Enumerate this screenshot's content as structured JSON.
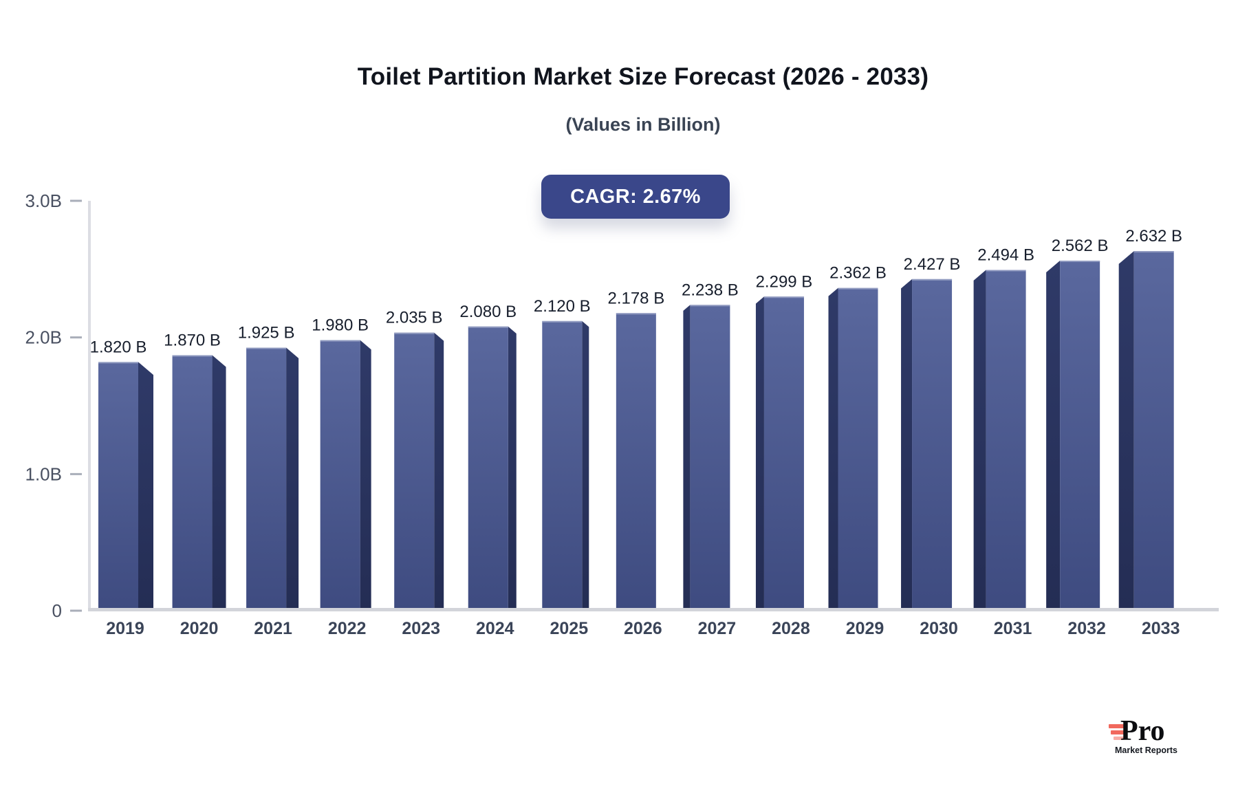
{
  "header": {
    "title": "Toilet Partition Market Size Forecast (2026 - 2033)",
    "subtitle": "(Values in Billion)",
    "cagr_badge": "CAGR: 2.67%"
  },
  "chart_data": {
    "type": "bar",
    "title": "Toilet Partition Market Size Forecast (2026 - 2033)",
    "subtitle": "(Values in Billion)",
    "cagr_text": "CAGR: 2.67%",
    "unit": "Billion",
    "categories": [
      "2019",
      "2020",
      "2021",
      "2022",
      "2023",
      "2024",
      "2025",
      "2026",
      "2027",
      "2028",
      "2029",
      "2030",
      "2031",
      "2032",
      "2033"
    ],
    "values": [
      1.82,
      1.87,
      1.925,
      1.98,
      2.035,
      2.08,
      2.12,
      2.178,
      2.238,
      2.299,
      2.362,
      2.427,
      2.494,
      2.562,
      2.632
    ],
    "value_labels": [
      "1.820 B",
      "1.870 B",
      "1.925 B",
      "1.980 B",
      "2.035 B",
      "2.080 B",
      "2.120 B",
      "2.178 B",
      "2.238 B",
      "2.299 B",
      "2.362 B",
      "2.427 B",
      "2.494 B",
      "2.562 B",
      "2.632 B"
    ],
    "xlabel": "",
    "ylabel": "",
    "ylim": [
      0,
      3.0
    ],
    "ytick_labels": [
      "0",
      "1.0B",
      "2.0B",
      "3.0B"
    ],
    "ytick_values": [
      0,
      1,
      2,
      3
    ],
    "grid": false,
    "legend": "none",
    "bar_style": "3d-perspective-center-vanishing",
    "colors": {
      "bar_front_top": "#5a689e",
      "bar_front_bottom": "#3e4b80",
      "bar_side_top": "#2f3a68",
      "bar_side_bottom": "#242d54",
      "bar_top_highlight": "#9aa3c6",
      "axis_line": "#dcdde3",
      "baseline": "#d2d4da",
      "tick_dash": "#a9aeb9",
      "ytick_text": "#495061",
      "xtick_text": "#3a4458",
      "value_text": "#171e2c",
      "badge_bg": "#3a478a",
      "badge_text": "#ffffff"
    }
  },
  "logo": {
    "title": "Pro",
    "subtitle": "Market Reports",
    "accent_color": "#f1695d"
  }
}
